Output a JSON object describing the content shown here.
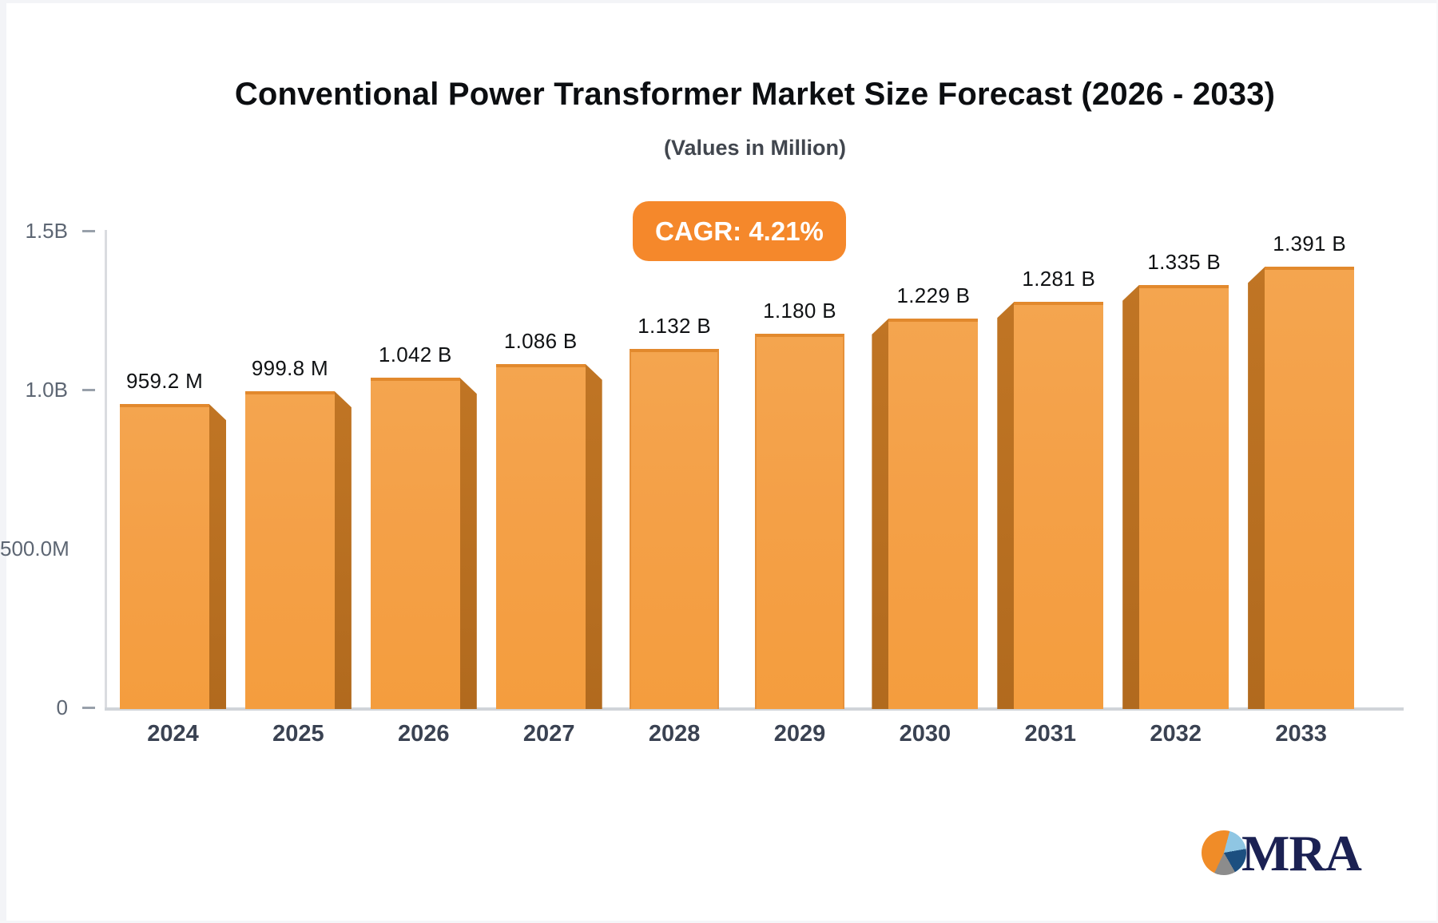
{
  "header": {
    "title": "Conventional Power Transformer Market Size Forecast (2026 - 2033)",
    "subtitle": "(Values in Million)",
    "cagr_label": "CAGR: 4.21%"
  },
  "colors": {
    "badge_bg": "#f5882b",
    "bar_face": "#f4a047",
    "bar_face_top_edge": "#e2892d",
    "bar_side": "#b86f1f",
    "axis_line": "#dadce0",
    "baseline": "#d0d4d9",
    "tick_text": "#5d6673",
    "year_text": "#3a4252",
    "value_text": "#101214",
    "title_text": "#0c0e11"
  },
  "chart_data": {
    "type": "bar",
    "title": "Conventional Power Transformer Market Size Forecast (2026 - 2033)",
    "subtitle": "(Values in Million)",
    "annotation": "CAGR: 4.21%",
    "categories": [
      "2024",
      "2025",
      "2026",
      "2027",
      "2028",
      "2029",
      "2030",
      "2031",
      "2032",
      "2033"
    ],
    "values_million": [
      959.2,
      999.8,
      1042,
      1086,
      1132,
      1180,
      1229,
      1281,
      1335,
      1391
    ],
    "value_labels": [
      "959.2 M",
      "999.8 M",
      "1.042 B",
      "1.086 B",
      "1.132 B",
      "1.180 B",
      "1.229 B",
      "1.281 B",
      "1.335 B",
      "1.391 B"
    ],
    "bar_3d_side": [
      "right",
      "right",
      "right",
      "right",
      "none",
      "none",
      "left",
      "left",
      "left",
      "left"
    ],
    "ylabel": "",
    "xlabel": "",
    "ylim_million": [
      0,
      1500
    ],
    "y_ticks": [
      {
        "label": "1.5B",
        "million": 1500,
        "dash": true
      },
      {
        "label": "1.0B",
        "million": 1000,
        "dash": true
      },
      {
        "label": "500.0M",
        "million": 500,
        "dash": false
      },
      {
        "label": "0",
        "million": 0,
        "dash": true
      }
    ],
    "grid": false,
    "legend": "none"
  },
  "logo": {
    "text": "MRA",
    "text_color": "#1b2153",
    "pie_orange": "#f08c28",
    "pie_lightblue": "#8fc6e3",
    "pie_navy": "#1c4f80",
    "pie_gray": "#8c8c8c"
  }
}
